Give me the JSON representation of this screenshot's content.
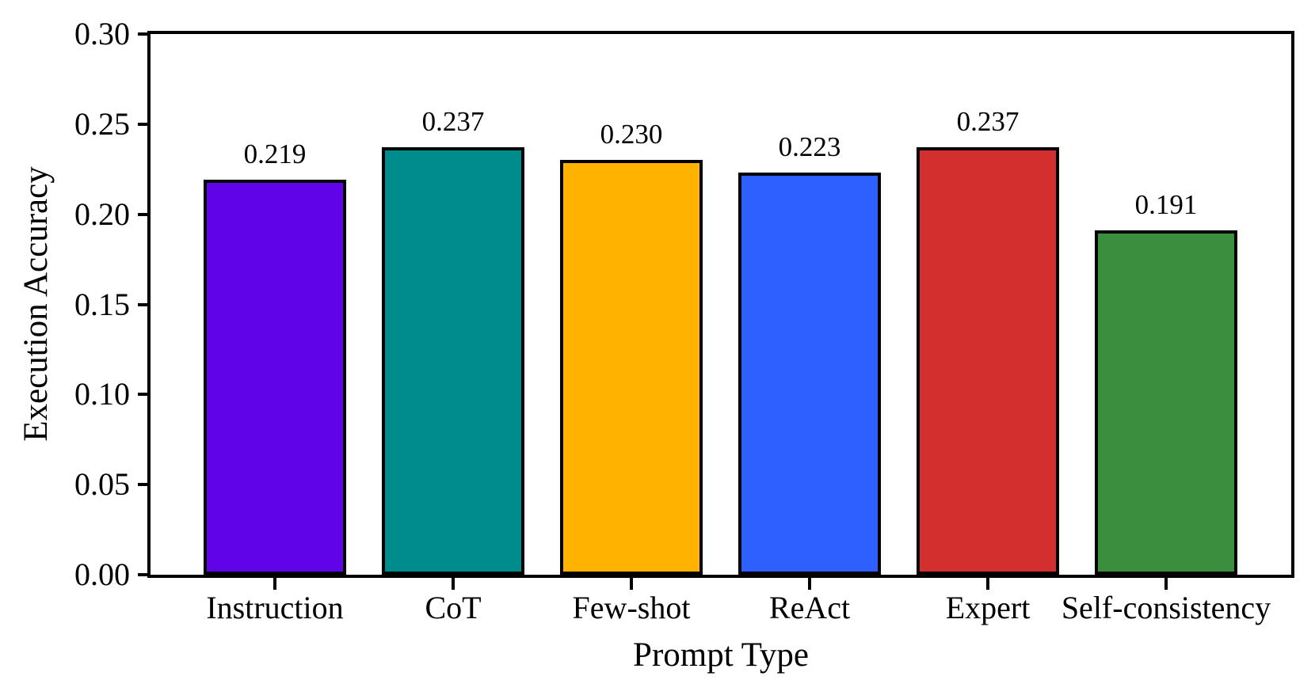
{
  "chart_data": {
    "type": "bar",
    "title": "",
    "xlabel": "Prompt Type",
    "ylabel": "Execution Accuracy",
    "categories": [
      "Instruction",
      "CoT",
      "Few-shot",
      "ReAct",
      "Expert",
      "Self-consistency"
    ],
    "values": [
      0.219,
      0.237,
      0.23,
      0.223,
      0.237,
      0.191
    ],
    "value_labels": [
      "0.219",
      "0.237",
      "0.230",
      "0.223",
      "0.237",
      "0.191"
    ],
    "bar_colors": [
      "#6103E8",
      "#008C8C",
      "#FFB300",
      "#2E5FFF",
      "#D32F2F",
      "#3A8E3E"
    ],
    "bar_edge_color": "#000000",
    "ylim": [
      0.0,
      0.3
    ],
    "yticks": [
      0.0,
      0.05,
      0.1,
      0.15,
      0.2,
      0.25,
      0.3
    ],
    "ytick_labels": [
      "0.00",
      "0.05",
      "0.10",
      "0.15",
      "0.20",
      "0.25",
      "0.30"
    ],
    "grid": false,
    "legend": null,
    "background_color": "#ffffff"
  }
}
